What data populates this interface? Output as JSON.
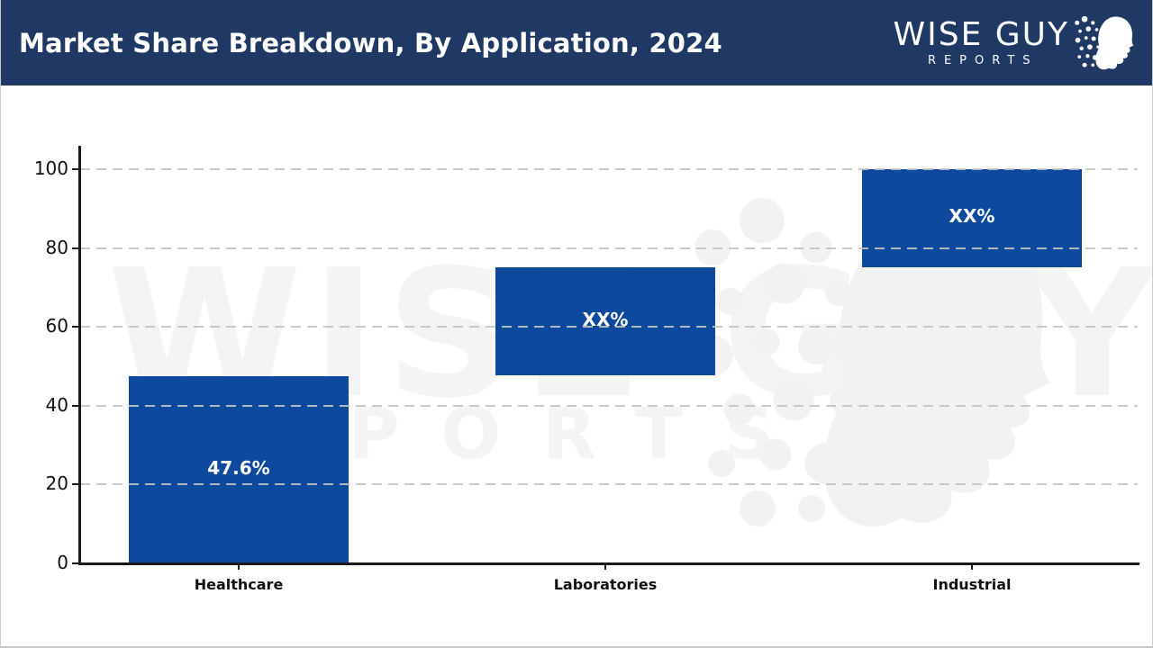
{
  "header": {
    "title": "Market Share Breakdown, By Application, 2024",
    "background_color": "#1f3864",
    "logo": {
      "line1": "WISE GUY",
      "line2": "REPORTS"
    }
  },
  "watermark": {
    "line1": "WISE GUY",
    "line2": "REPORTS"
  },
  "chart_data": {
    "type": "bar",
    "variant": "floating-waterfall",
    "title": "Market Share Breakdown, By Application, 2024",
    "categories": [
      "Healthcare",
      "Laboratories",
      "Industrial"
    ],
    "segments": [
      {
        "category": "Healthcare",
        "start": 0,
        "end": 47.6,
        "label": "47.6%"
      },
      {
        "category": "Laboratories",
        "start": 47.6,
        "end": 75.2,
        "label": "XX%"
      },
      {
        "category": "Industrial",
        "start": 75.2,
        "end": 100,
        "label": "XX%"
      }
    ],
    "xlabel": "",
    "ylabel": "",
    "ylim": [
      0,
      100
    ],
    "yticks": [
      0,
      20,
      40,
      60,
      80,
      100
    ],
    "grid": "horizontal-dashed",
    "legend": "none",
    "bar_color": "#0d4a9e",
    "bar_label_color": "#ffffff",
    "axis_color": "#1a1a1a",
    "gridline_color": "#c9c9c9"
  }
}
